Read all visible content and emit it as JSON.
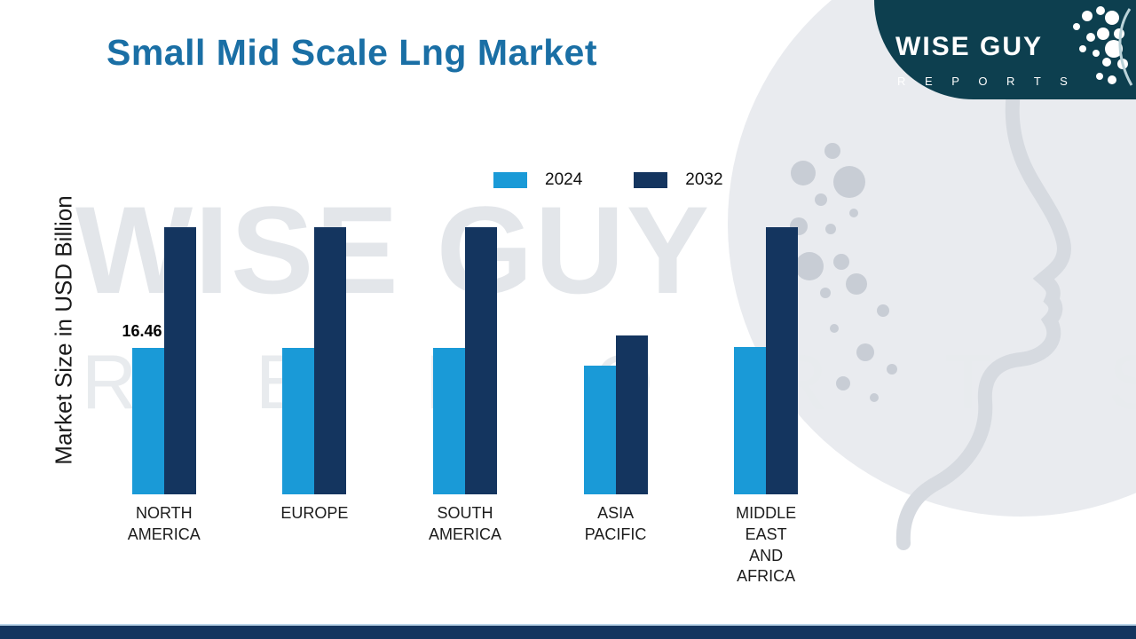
{
  "title": "Small Mid Scale Lng Market",
  "logo": {
    "name": "WISE GUY",
    "reports": "R E P O R T S"
  },
  "watermark": {
    "name": "WISE GUY",
    "reports": "R E P O R T S"
  },
  "colors": {
    "title_blue": "#1a6fa5",
    "series_2024_blue": "#1a9ad7",
    "series_2032_navy": "#14355f",
    "logo_background": "#0d3f4f"
  },
  "chart_data": {
    "type": "bar",
    "title": "Small Mid Scale Lng Market",
    "xlabel": "",
    "ylabel": "Market Size in USD Billion",
    "ylim": [
      0,
      31
    ],
    "grid": false,
    "legend_position": "top",
    "categories": [
      "NORTH\nAMERICA",
      "EUROPE",
      "SOUTH\nAMERICA",
      "ASIA\nPACIFIC",
      "MIDDLE\nEAST\nAND\nAFRICA"
    ],
    "series": [
      {
        "name": "2024",
        "color": "#1a9ad7",
        "values": [
          16.46,
          16.5,
          16.5,
          14.5,
          16.6
        ]
      },
      {
        "name": "2032",
        "color": "#14355f",
        "values": [
          30.1,
          30.1,
          30.1,
          17.9,
          30.1
        ]
      }
    ],
    "value_labels": [
      {
        "series": "2024",
        "category_index": 0,
        "text": "16.46"
      }
    ]
  }
}
